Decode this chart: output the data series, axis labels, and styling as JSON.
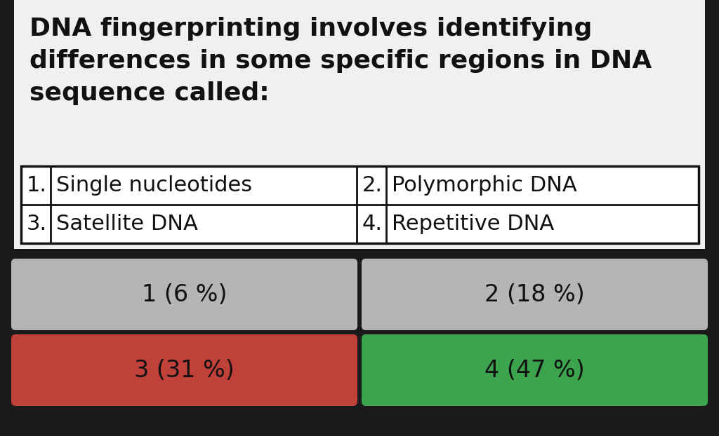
{
  "title_lines": [
    "DNA fingerprinting involves identifying",
    "differences in some specific regions in DNA",
    "sequence called:"
  ],
  "table_rows": [
    [
      "1.",
      "Single nucleotides",
      "2.",
      "Polymorphic DNA"
    ],
    [
      "3.",
      "Satellite DNA",
      "4.",
      "Repetitive DNA"
    ]
  ],
  "option_labels": [
    "1 (6 %)",
    "2 (18 %)",
    "3 (31 %)",
    "4 (47 %)"
  ],
  "option_colors": [
    "#b5b5b5",
    "#b5b5b5",
    "#c0413a",
    "#3da44e"
  ],
  "option_text_colors": [
    "#111111",
    "#111111",
    "#111111",
    "#111111"
  ],
  "bg_color": "#1a1a1a",
  "top_panel_color": "#f0f0f0",
  "table_bg_color": "#ffffff",
  "table_border_color": "#111111",
  "font_size_title": 26,
  "font_size_table": 22,
  "font_size_options": 24
}
